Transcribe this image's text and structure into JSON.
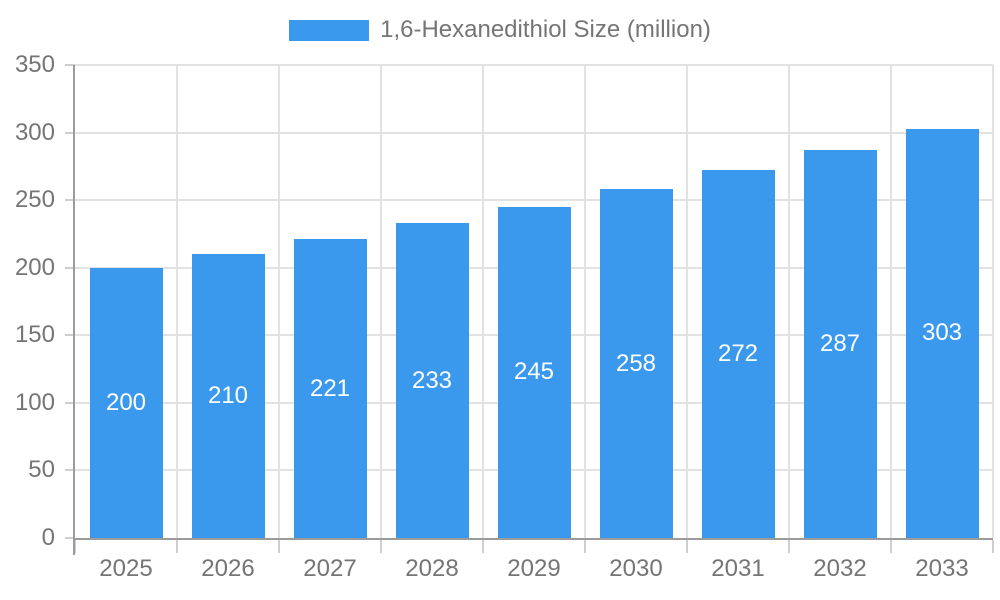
{
  "chart_data": {
    "type": "bar",
    "title": "",
    "categories": [
      "2025",
      "2026",
      "2027",
      "2028",
      "2029",
      "2030",
      "2031",
      "2032",
      "2033"
    ],
    "series": [
      {
        "name": "1,6-Hexanedithiol Size (million)",
        "values": [
          200,
          210,
          221,
          233,
          245,
          258,
          272,
          287,
          303
        ]
      }
    ],
    "value_labels": [
      "200",
      "210",
      "221",
      "233",
      "245",
      "258",
      "272",
      "287",
      "303"
    ],
    "ylabel": "",
    "xlabel": "",
    "ylim": [
      0,
      350
    ],
    "ytick_step": 50,
    "ytick_labels": [
      "0",
      "50",
      "100",
      "150",
      "200",
      "250",
      "300",
      "350"
    ],
    "grid": true,
    "legend_position": "top",
    "colors": {
      "bar": "#3a99ec",
      "value_label": "#ffffff",
      "axis_text": "#757575",
      "grid_line": "#e2e2e2",
      "axis_line": "#9b9b9b",
      "tick_mark": "#cfcfcf",
      "background": "#ffffff"
    }
  }
}
